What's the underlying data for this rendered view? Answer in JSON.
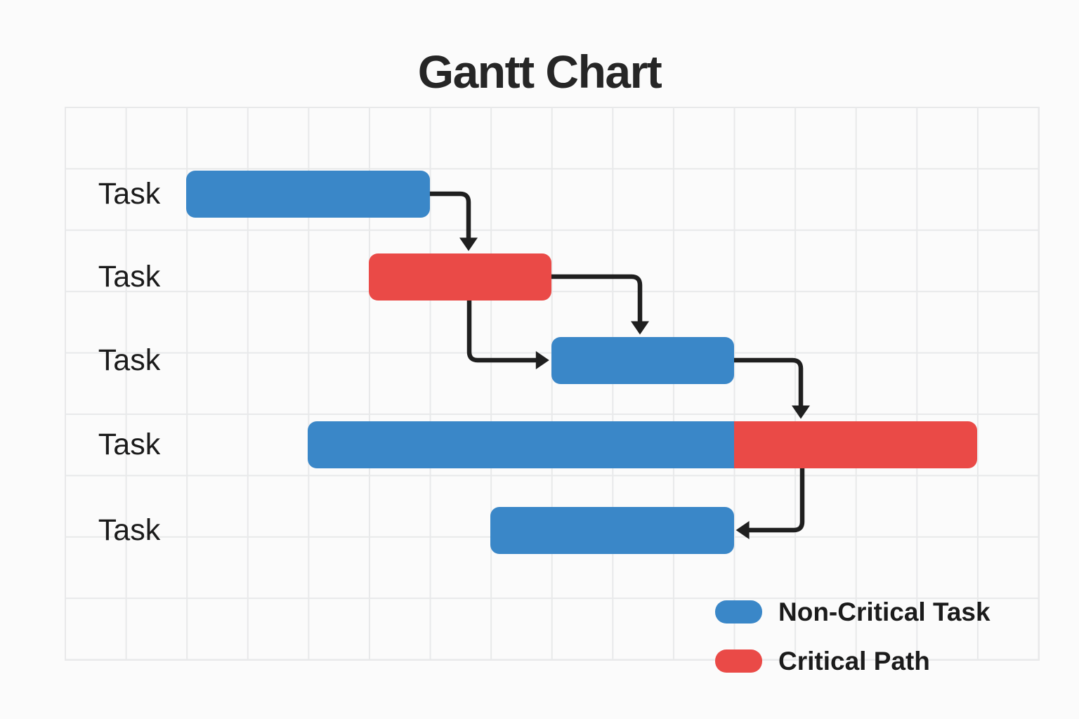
{
  "title": "Gantt Chart",
  "colors": {
    "non_critical": "#3A87C8",
    "critical": "#EA4A47",
    "arrow": "#1F1F1F",
    "grid_line": "#E8E9EA",
    "background": "#FBFBFB",
    "text": "#1B1B1B",
    "title_text": "#262626"
  },
  "chart_data": {
    "type": "gantt",
    "title": "Gantt Chart",
    "grid": {
      "columns": 16,
      "rows": 9,
      "visible": true,
      "unit": "grid cells"
    },
    "axis_labels_visible": false,
    "tasks": [
      {
        "label": "Task",
        "row": 0,
        "segments": [
          {
            "start": 2,
            "duration": 4,
            "type": "non_critical"
          }
        ]
      },
      {
        "label": "Task",
        "row": 1,
        "segments": [
          {
            "start": 5,
            "duration": 3,
            "type": "critical"
          }
        ]
      },
      {
        "label": "Task",
        "row": 2,
        "segments": [
          {
            "start": 8,
            "duration": 3,
            "type": "non_critical"
          }
        ]
      },
      {
        "label": "Task",
        "row": 3,
        "segments": [
          {
            "start": 4,
            "duration": 7,
            "type": "non_critical"
          },
          {
            "start": 11,
            "duration": 4,
            "type": "critical"
          }
        ]
      },
      {
        "label": "Task",
        "row": 4,
        "segments": [
          {
            "start": 7,
            "duration": 4,
            "type": "non_critical"
          }
        ]
      }
    ],
    "dependencies": [
      {
        "from": 0,
        "to": 1,
        "exit": "right",
        "enter": "top"
      },
      {
        "from": 1,
        "to": 2,
        "exit": "right",
        "enter": "top"
      },
      {
        "from": 1,
        "to": 2,
        "exit": "bottom",
        "enter": "left"
      },
      {
        "from": 2,
        "to": 3,
        "exit": "right",
        "enter": "top"
      },
      {
        "from": 3,
        "to": 4,
        "exit": "bottom",
        "enter": "right"
      }
    ],
    "legend": [
      {
        "label": "Non-Critical Task",
        "type": "non_critical"
      },
      {
        "label": "Critical Path",
        "type": "critical"
      }
    ],
    "legend_position": "bottom-right"
  }
}
